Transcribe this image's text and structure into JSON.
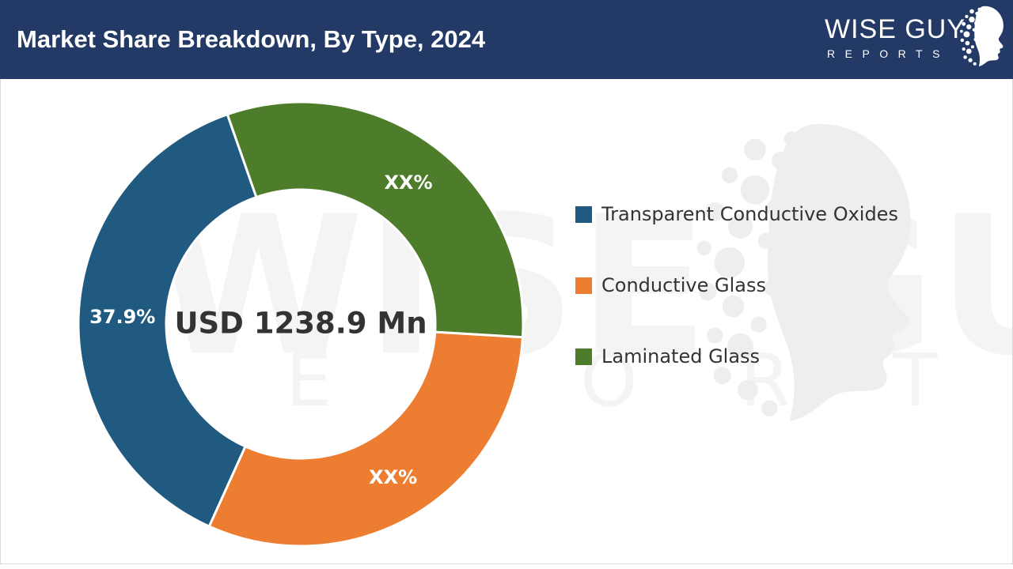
{
  "header": {
    "title": "Market Share Breakdown, By Type, 2024",
    "logo": {
      "line1": "WISE GUY",
      "line2": "REPORTS"
    }
  },
  "chart_data": {
    "type": "pie",
    "subtype": "donut",
    "title": "Market Share Breakdown, By Type, 2024",
    "center_label": "USD 1238.9 Mn",
    "legend_position": "right",
    "start_angle_deg": 204.3,
    "segments": [
      {
        "name": "Transparent Conductive Oxides",
        "value_pct": 37.9,
        "display_label": "37.9%",
        "color": "#205A80",
        "draw_order": 0
      },
      {
        "name": "Conductive Glass",
        "value_pct": 30.8,
        "display_label": "XX%",
        "color": "#ED7D31",
        "draw_order": 2
      },
      {
        "name": "Laminated Glass",
        "value_pct": 31.3,
        "display_label": "XX%",
        "color": "#4D7C2A",
        "draw_order": 1
      }
    ]
  },
  "watermark": {
    "line1": "WISE GUY",
    "line2": "R E P O R T S"
  },
  "colors": {
    "header_bg": "#233A66",
    "text_dark": "#333333",
    "label_on_slice": "#ffffff",
    "watermark": "#f4f4f4",
    "border": "#d9d9d9"
  }
}
